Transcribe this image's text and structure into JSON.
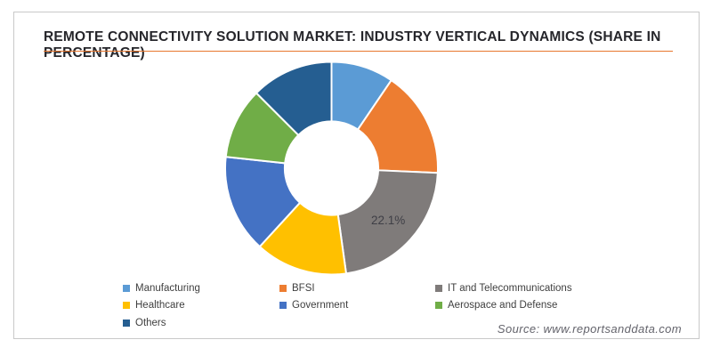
{
  "header": {
    "title": "REMOTE CONNECTIVITY SOLUTION MARKET: INDUSTRY VERTICAL DYNAMICS (SHARE IN PERCENTAGE)",
    "underline_color": "#e8772e"
  },
  "source": {
    "text": "Source: www.reportsanddata.com"
  },
  "chart_data": {
    "type": "pie",
    "subtype": "donut",
    "title": "Remote Connectivity Solution Market: Industry Vertical Dynamics (Share in Percentage)",
    "start_angle_deg": 0,
    "direction": "clockwise",
    "hole_ratio": 0.44,
    "legend_position": "bottom",
    "visible_data_labels": [
      "22.1%"
    ],
    "series": [
      {
        "name": "Manufacturing",
        "value": 9.5,
        "color": "#5b9bd5"
      },
      {
        "name": "BFSI",
        "value": 16.2,
        "color": "#ed7d31"
      },
      {
        "name": "IT and Telecommunications",
        "value": 22.1,
        "color": "#7f7b7a",
        "data_label": "22.1%"
      },
      {
        "name": "Healthcare",
        "value": 14.0,
        "color": "#ffc000"
      },
      {
        "name": "Government",
        "value": 14.9,
        "color": "#4472c4"
      },
      {
        "name": "Aerospace and Defense",
        "value": 10.8,
        "color": "#70ad47"
      },
      {
        "name": "Others",
        "value": 12.5,
        "color": "#255e91"
      }
    ]
  }
}
